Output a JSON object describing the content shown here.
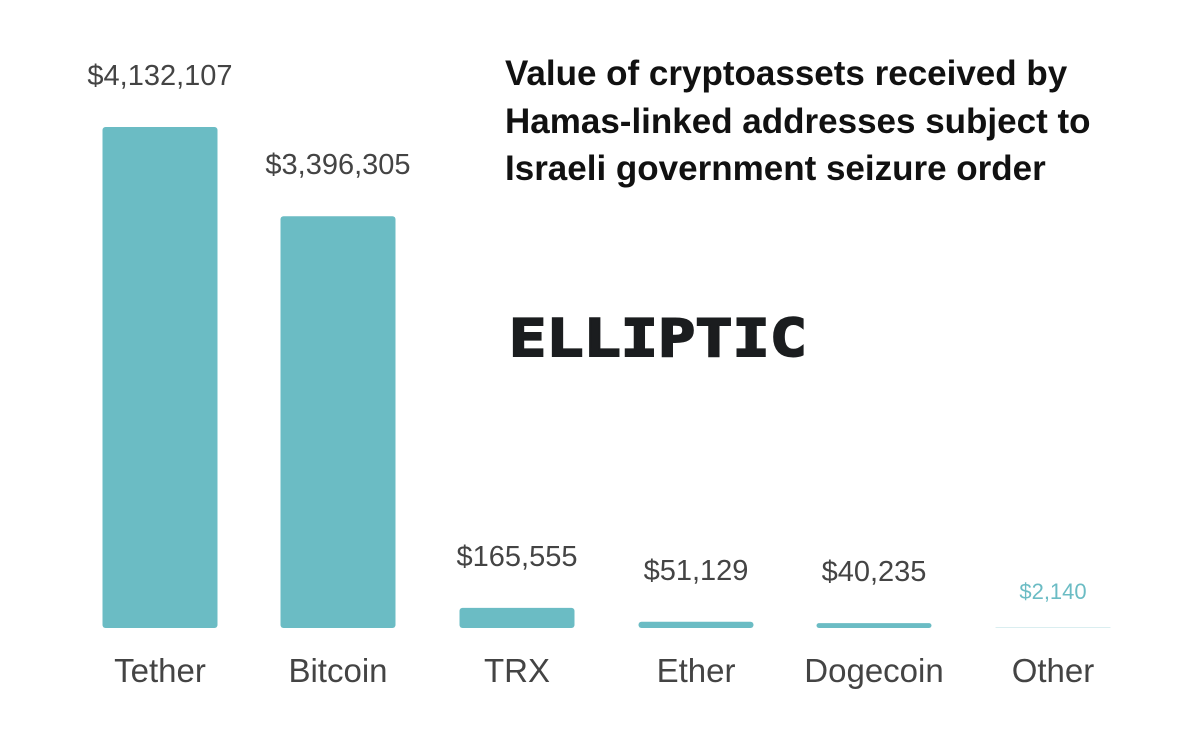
{
  "chart_data": {
    "type": "bar",
    "title": "Value of cryptoassets received by Hamas-linked addresses subject to Israeli government seizure order",
    "categories": [
      "Tether",
      "Bitcoin",
      "TRX",
      "Ether",
      "Dogecoin",
      "Other"
    ],
    "values": [
      4132107,
      3396305,
      165555,
      51129,
      40235,
      2140
    ],
    "data_labels": [
      "$4,132,107",
      "$3,396,305",
      "$165,555",
      "$51,129",
      "$40,235",
      "$2,140"
    ],
    "xlabel": "",
    "ylabel": "",
    "ylim": [
      0,
      4132107
    ],
    "grid": false,
    "legend": "none",
    "colors": {
      "bar": "#6bbcc4",
      "label": "#444444",
      "small_label": "#6bbcc4",
      "title": "#111111"
    }
  },
  "logo": {
    "text": "ELLIPTIC"
  }
}
